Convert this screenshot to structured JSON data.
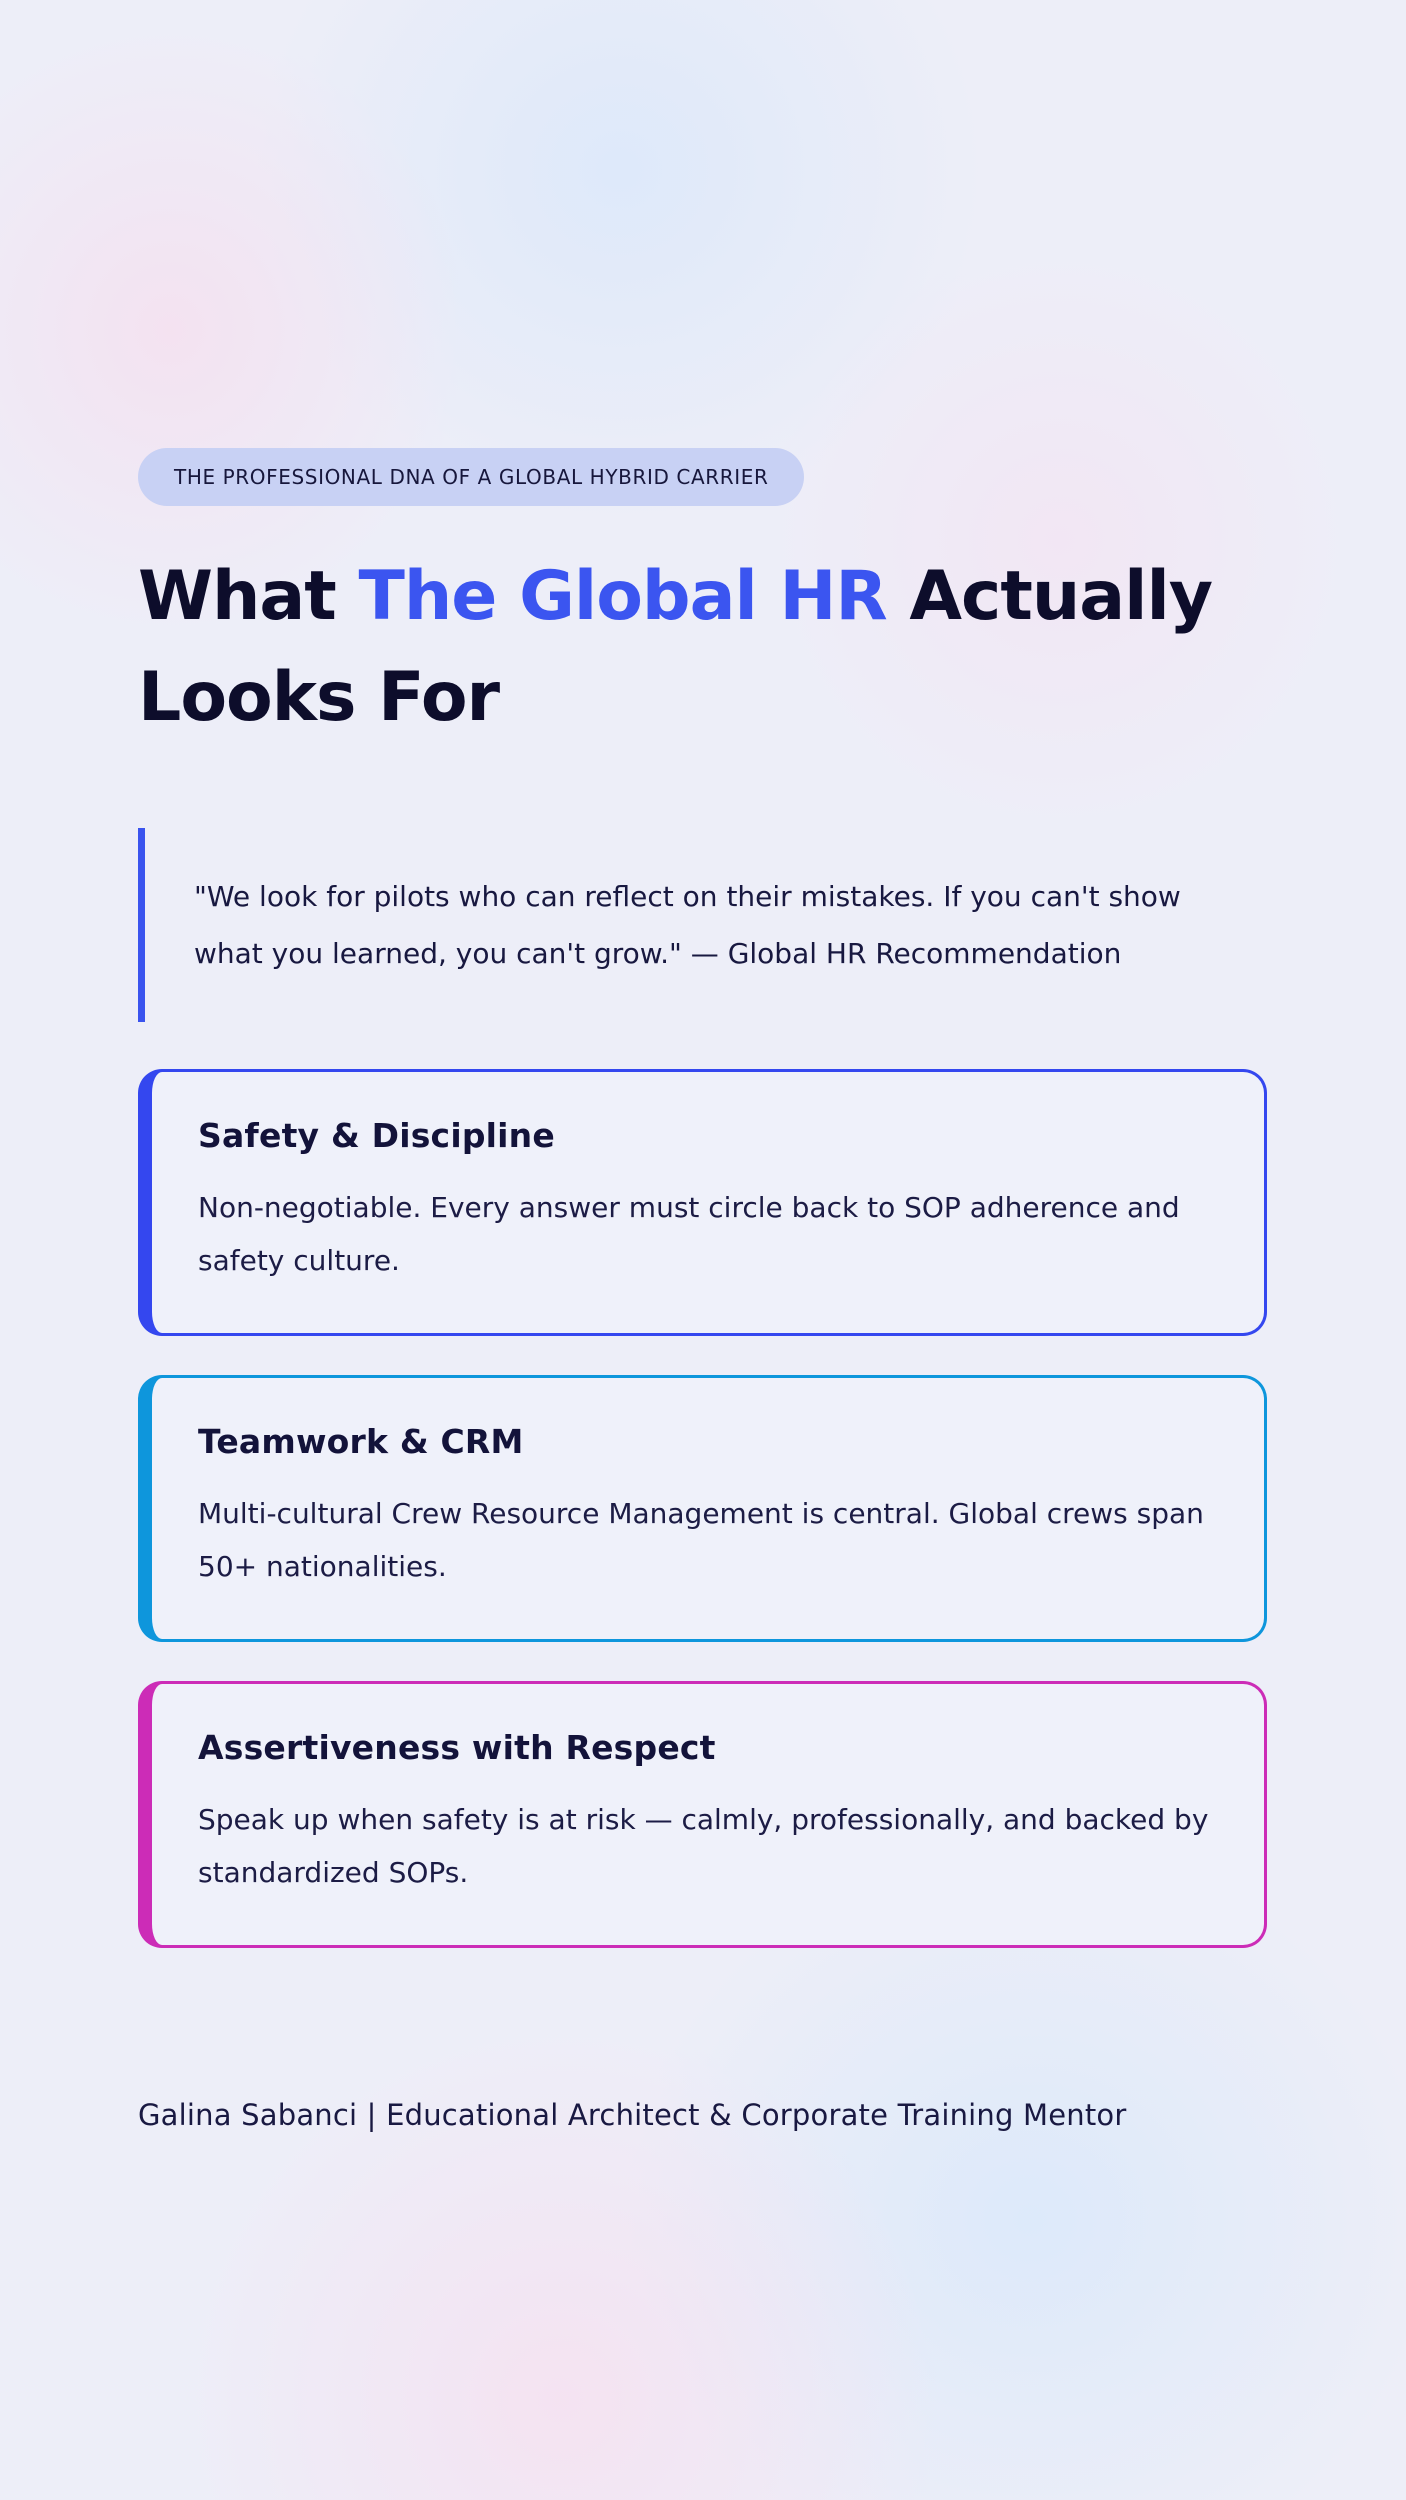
{
  "page": {
    "badge": "THE PROFESSIONAL DNA OF A GLOBAL HYBRID CARRIER",
    "title": {
      "prefix": "What ",
      "highlight": "The Global HR",
      "suffix": " Actually",
      "line2": "Looks For"
    },
    "quote": "\"We look for pilots who can reflect on their mistakes. If you can't show what you learned, you can't grow.\" — Global HR Recommendation",
    "cards": [
      {
        "title": "Safety & Discipline",
        "body": "Non-negotiable. Every answer must circle back to SOP adherence and safety culture.",
        "accent": "#3447EF"
      },
      {
        "title": "Teamwork & CRM",
        "body": "Multi-cultural Crew Resource Management is central. Global crews span 50+ nationalities.",
        "accent": "#0E96DC"
      },
      {
        "title": "Assertiveness with Respect",
        "body": "Speak up when safety is at risk — calmly, professionally, and backed by standardized SOPs.",
        "accent": "#CC2CB7"
      }
    ],
    "footer": "Galina Sabanci | Educational Architect & Corporate Training Mentor",
    "colors": {
      "accent_blue": "#3B55F0",
      "badge_bg": "#C8D1F4",
      "text_dark": "#0D0D2B",
      "card_safety_accent": "#3447EF",
      "card_teamwork_accent": "#0E96DC",
      "card_assertiveness_accent": "#CC2CB7"
    }
  }
}
